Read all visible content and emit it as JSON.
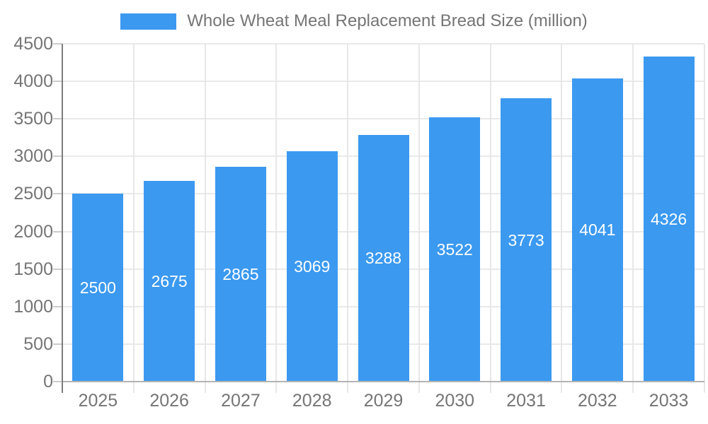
{
  "legend": {
    "label": "Whole Wheat Meal Replacement Bread Size (million)"
  },
  "chart_data": {
    "type": "bar",
    "title": "Whole Wheat Meal Replacement Bread Size (million)",
    "categories": [
      "2025",
      "2026",
      "2027",
      "2028",
      "2029",
      "2030",
      "2031",
      "2032",
      "2033"
    ],
    "values": [
      2500,
      2675,
      2865,
      3069,
      3288,
      3522,
      3773,
      4041,
      4326
    ],
    "series": [
      {
        "name": "Whole Wheat Meal Replacement Bread Size (million)",
        "values": [
          2500,
          2675,
          2865,
          3069,
          3288,
          3522,
          3773,
          4041,
          4326
        ]
      }
    ],
    "xlabel": "",
    "ylabel": "",
    "ylim": [
      0,
      4500
    ],
    "yticks": [
      0,
      500,
      1000,
      1500,
      2000,
      2500,
      3000,
      3500,
      4000,
      4500
    ],
    "grid": true,
    "legend_position": "top",
    "value_label_position": "inside-center",
    "colors": {
      "bar": "#3b99f0",
      "axis_text": "#757575",
      "gridline": "#e9e9e9",
      "y_axis_line": "#7d7d7d",
      "x_axis_line": "#b3b3b3",
      "value_label": "#ffffff",
      "background": "#ffffff"
    }
  }
}
